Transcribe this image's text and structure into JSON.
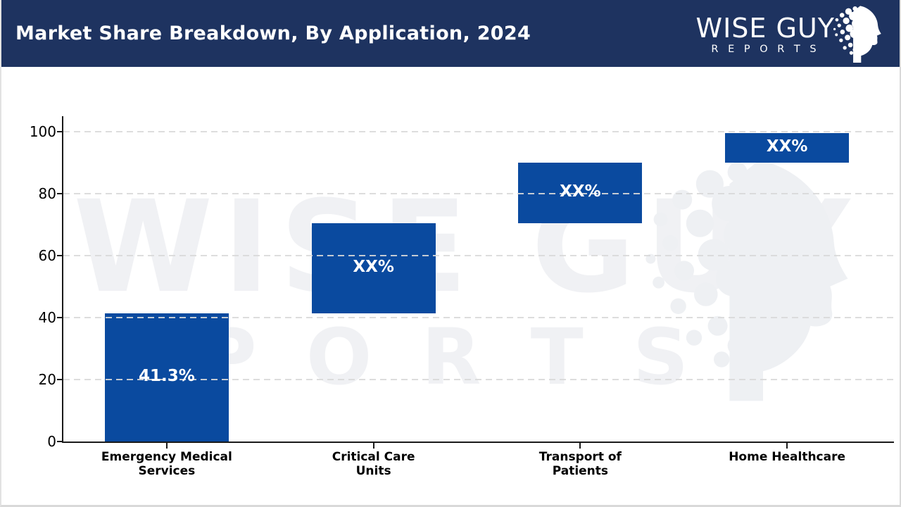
{
  "header": {
    "title": "Market Share Breakdown, By Application, 2024",
    "logo": {
      "brand_line1": "WISE GUY",
      "brand_line2": "R E P O R T S"
    }
  },
  "watermark": {
    "line1": "WISE GUY",
    "line2": "P O R T S"
  },
  "chart_data": {
    "type": "bar",
    "subtype": "waterfall-breakdown",
    "title": "Market Share Breakdown, By Application, 2024",
    "categories": [
      "Emergency Medical\nServices",
      "Critical Care\nUnits",
      "Transport of\nPatients",
      "Home Healthcare"
    ],
    "bars": [
      {
        "category": "Emergency Medical Services",
        "start": 0,
        "end": 41.3,
        "label": "41.3%"
      },
      {
        "category": "Critical Care Units",
        "start": 41.3,
        "end": 70.5,
        "label": "XX%"
      },
      {
        "category": "Transport of Patients",
        "start": 70.5,
        "end": 90.0,
        "label": "XX%"
      },
      {
        "category": "Home Healthcare",
        "start": 90.0,
        "end": 99.5,
        "label": "XX%"
      }
    ],
    "ylim": [
      0,
      100
    ],
    "yticks": [
      0,
      20,
      40,
      60,
      80,
      100
    ],
    "xlabel": "",
    "ylabel": "",
    "grid": {
      "axis": "y",
      "style": "dashed",
      "color": "#d9d9d9"
    },
    "legend": null
  },
  "colors": {
    "header_bg": "#1e3360",
    "bar_blue": "#0a4a9f",
    "bar_label": "#ffffff",
    "watermark": "#f0f1f4",
    "axis": "#1a1a1a"
  }
}
